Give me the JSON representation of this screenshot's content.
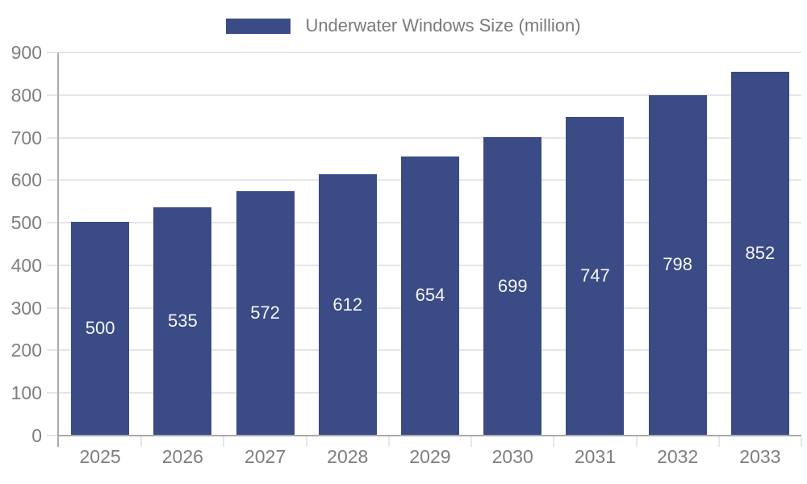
{
  "chart_data": {
    "type": "bar",
    "title": "Underwater Windows Size (million)",
    "legend_entries": [
      "Underwater Windows Size (million)"
    ],
    "legend_position": "top-center",
    "categories": [
      "2025",
      "2026",
      "2027",
      "2028",
      "2029",
      "2030",
      "2031",
      "2032",
      "2033"
    ],
    "series": [
      {
        "name": "Underwater Windows Size (million)",
        "values": [
          500,
          535,
          572,
          612,
          654,
          699,
          747,
          798,
          852
        ]
      }
    ],
    "bar_value_labels": [
      "500",
      "535",
      "572",
      "612",
      "654",
      "699",
      "747",
      "798",
      "852"
    ],
    "xlabel": "",
    "ylabel": "",
    "ylim": [
      0,
      900
    ],
    "ytick_step": 100,
    "ytick_labels": [
      "0",
      "100",
      "200",
      "300",
      "400",
      "500",
      "600",
      "700",
      "800",
      "900"
    ],
    "grid": true,
    "colors": {
      "bar_fill": "#3A4B85",
      "bar_value_text": "#f7f7f7",
      "axis_label_text": "#7e7e7e",
      "legend_text": "#7a7a7a",
      "gridline": "#e5e5ea",
      "axis_line": "#aaaaaa",
      "tick": "#e5e5ea",
      "background": "#ffffff"
    }
  },
  "legend": {
    "label": "Underwater Windows Size (million)"
  }
}
